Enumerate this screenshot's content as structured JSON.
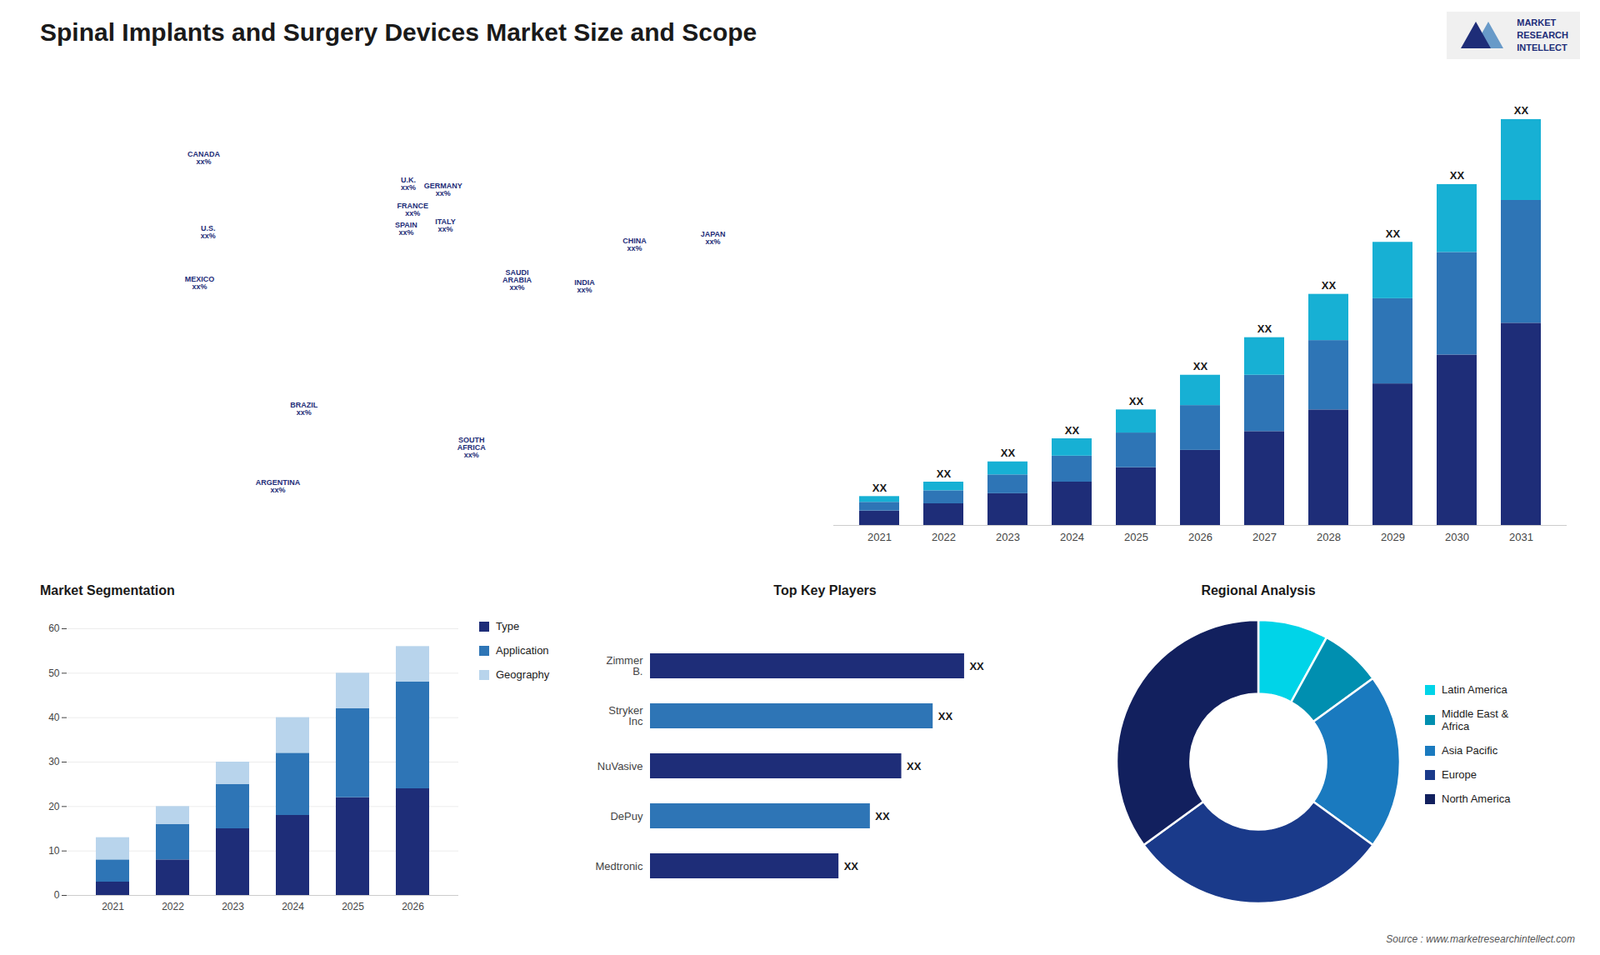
{
  "title": "Spinal Implants and Surgery Devices Market Size and Scope",
  "annotations": [
    "MARKET",
    "RESEARCH",
    "INTELLECT",
    "Source : www.marketresearchintellect.com"
  ],
  "chart_data": [
    {
      "type": "map",
      "labels": [
        "U.S.\nxx%",
        "CANADA\nxx%",
        "MEXICO\nxx%",
        "BRAZIL\nxx%",
        "ARGENTINA\nxx%",
        "U.K.\nxx%",
        "FRANCE\nxx%",
        "SPAIN\nxx%",
        "GERMANY\nxx%",
        "ITALY\nxx%",
        "SAUDI\nARABIA\nxx%",
        "SOUTH\nAFRICA\nxx%",
        "CHINA\nxx%",
        "INDIA\nxx%",
        "JAPAN\nxx%"
      ],
      "x": [
        -96,
        -98,
        -100,
        -52,
        -64,
        -4,
        -2,
        -5,
        12,
        13,
        46,
        25,
        100,
        77,
        136
      ],
      "y": [
        39,
        62,
        23,
        -16,
        -40,
        54,
        46,
        40,
        52,
        41,
        24,
        -28,
        35,
        22,
        37
      ],
      "xlim": [
        -180,
        180
      ],
      "ylim": [
        -60,
        85
      ],
      "tick_labels": false,
      "color": "#1e2d78"
    },
    {
      "type": "bar",
      "stacked": true,
      "categories": [
        "2021",
        "2022",
        "2023",
        "2024",
        "2025",
        "2026",
        "2027",
        "2028",
        "2029",
        "2030",
        "2031"
      ],
      "series": [
        {
          "color": "#1e2d78",
          "values": [
            1.0,
            1.5,
            2.2,
            3.0,
            4.0,
            5.2,
            6.5,
            8.0,
            9.8,
            11.8,
            14.0
          ]
        },
        {
          "color": "#2e75b6",
          "values": [
            0.6,
            0.9,
            1.3,
            1.8,
            2.4,
            3.1,
            3.9,
            4.8,
            5.9,
            7.1,
            8.5
          ]
        },
        {
          "color": "#17b0d4",
          "values": [
            0.4,
            0.6,
            0.9,
            1.2,
            1.6,
            2.1,
            2.6,
            3.2,
            3.9,
            4.7,
            5.6
          ]
        }
      ],
      "annotations": [
        "XX",
        "XX",
        "XX",
        "XX",
        "XX",
        "XX",
        "XX",
        "XX",
        "XX",
        "XX",
        "XX"
      ],
      "ylim": [
        0,
        30
      ],
      "tick_labels": "x"
    },
    {
      "type": "bar",
      "stacked": true,
      "title": "Market Segmentation",
      "categories": [
        "2021",
        "2022",
        "2023",
        "2024",
        "2025",
        "2026"
      ],
      "series": [
        {
          "name": "Type",
          "color": "#1e2d78",
          "values": [
            3,
            8,
            15,
            18,
            22,
            24
          ]
        },
        {
          "name": "Application",
          "color": "#2e75b6",
          "values": [
            5,
            8,
            10,
            14,
            20,
            24
          ]
        },
        {
          "name": "Geography",
          "color": "#b8d4ec",
          "values": [
            5,
            4,
            5,
            8,
            8,
            8
          ]
        }
      ],
      "ylim": [
        0,
        60
      ],
      "yticks": [
        0,
        10,
        20,
        30,
        40,
        50,
        60
      ],
      "grid": true,
      "legend": "right"
    },
    {
      "type": "bar",
      "orientation": "horizontal",
      "title": "Top Key Players",
      "categories": [
        "Zimmer\nB.",
        "Stryker\nInc",
        "NuVasive",
        "DePuy",
        "Medtronic"
      ],
      "values": [
        10,
        9,
        8,
        7,
        6
      ],
      "colors": [
        "#1e2d78",
        "#2e75b6",
        "#1e2d78",
        "#2e75b6",
        "#1e2d78"
      ],
      "annotations": [
        "XX",
        "XX",
        "XX",
        "XX",
        "XX"
      ],
      "xlim": [
        0,
        13
      ],
      "tick_labels": "y"
    },
    {
      "type": "pie",
      "title": "Regional Analysis",
      "categories": [
        "Latin America",
        "Middle East &\nAfrica",
        "Asia Pacific",
        "Europe",
        "North America"
      ],
      "values": [
        8,
        7,
        20,
        30,
        35
      ],
      "colors": [
        "#00d4e8",
        "#008fb0",
        "#1a7abf",
        "#1a3a8a",
        "#12205e"
      ],
      "legend": "right"
    }
  ]
}
